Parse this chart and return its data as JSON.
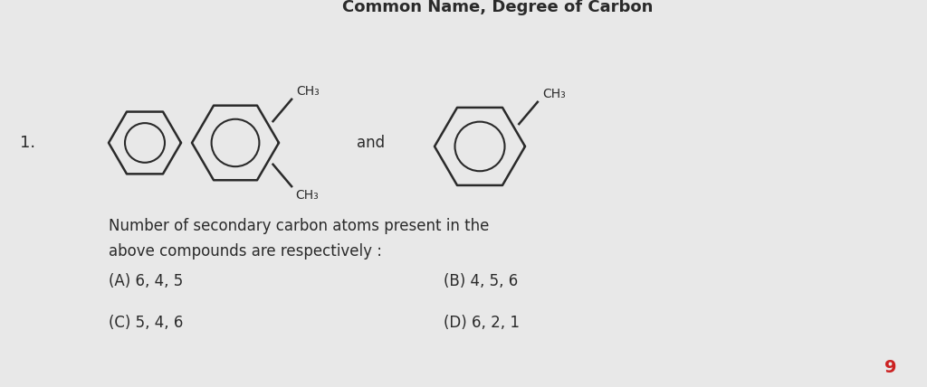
{
  "title": "Common Name, Degree of Carbon",
  "question_number": "1.",
  "question_text": "Number of secondary carbon atoms present in the\nabove compounds are respectively :",
  "options": [
    [
      "(A) 6, 4, 5",
      "(B) 4, 5, 6"
    ],
    [
      "(C) 5, 4, 6",
      "(D) 6, 2, 1"
    ]
  ],
  "page_number": "9",
  "bg_color": "#e8e8e8",
  "text_color": "#2a2a2a",
  "mol_color": "#2a2a2a",
  "and_text": "and",
  "ch3_label": "CH₃"
}
